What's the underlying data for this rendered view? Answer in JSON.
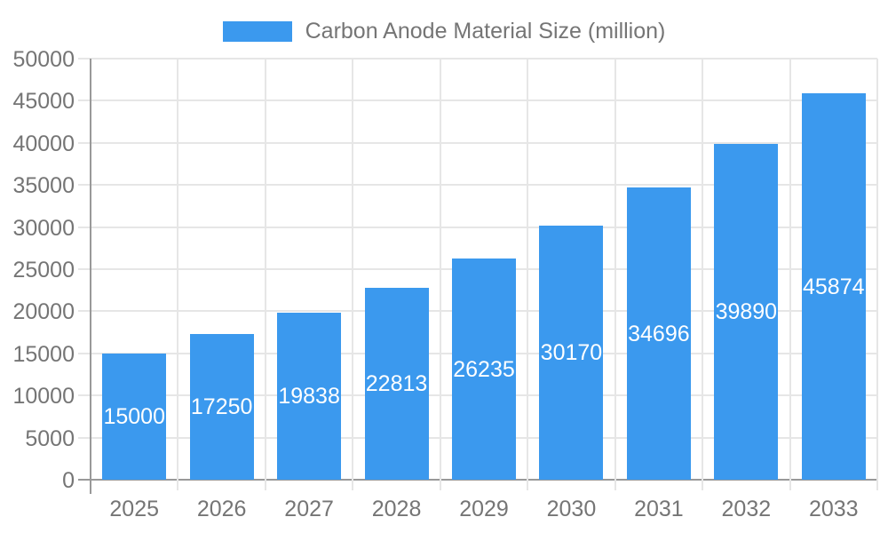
{
  "chart_data": {
    "type": "bar",
    "categories": [
      "2025",
      "2026",
      "2027",
      "2028",
      "2029",
      "2030",
      "2031",
      "2032",
      "2033"
    ],
    "series": [
      {
        "name": "Carbon Anode Material Size (million)",
        "values": [
          15000,
          17250,
          19838,
          22813,
          26235,
          30170,
          34696,
          39890,
          45874
        ]
      }
    ],
    "value_labels_shown": true,
    "xlabel": "",
    "ylabel": "",
    "ylim": [
      0,
      50000
    ],
    "y_ticks": [
      0,
      5000,
      10000,
      15000,
      20000,
      25000,
      30000,
      35000,
      40000,
      45000,
      50000
    ],
    "grid": true,
    "legend_position": "top"
  },
  "colors": {
    "bar": "#3B99EE",
    "axis_text": "#757575",
    "value_label_text": "#ffffff",
    "grid_line": "#e6e6e6",
    "axis_line": "#999999",
    "background": "#ffffff"
  }
}
